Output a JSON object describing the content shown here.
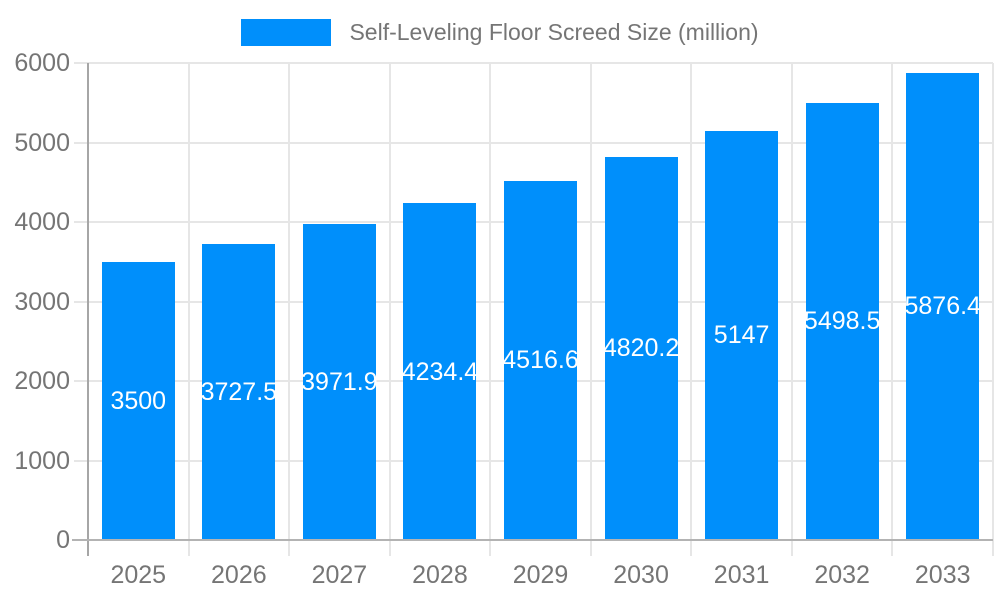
{
  "chart_data": {
    "type": "bar",
    "title": "Self-Leveling Floor Screed Size (million)",
    "categories": [
      "2025",
      "2026",
      "2027",
      "2028",
      "2029",
      "2030",
      "2031",
      "2032",
      "2033"
    ],
    "values": [
      3500,
      3727.5,
      3971.9,
      4234.4,
      4516.6,
      4820.2,
      5147,
      5498.5,
      5876.4
    ],
    "value_labels": [
      "3500",
      "3727.5",
      "3971.9",
      "4234.4",
      "4516.6",
      "4820.2",
      "5147",
      "5498.5",
      "5876.4"
    ],
    "xlabel": "",
    "ylabel": "",
    "ylim": [
      0,
      6000
    ],
    "yticks": [
      0,
      1000,
      2000,
      3000,
      4000,
      5000,
      6000
    ],
    "ytick_labels": [
      "0",
      "1000",
      "2000",
      "3000",
      "4000",
      "5000",
      "6000"
    ],
    "grid": true,
    "legend_position": "top",
    "value_label_position": "center-of-bar",
    "colors": {
      "bar": "#008FFB",
      "value_label": "#FFFFFF",
      "axis_label": "#757575",
      "legend_label": "#757575",
      "gridline": "#E6E6E6",
      "y_axis_line": "#A6A6A6",
      "x_baseline": "#B3B3B3",
      "background": "#FFFFFF"
    }
  }
}
